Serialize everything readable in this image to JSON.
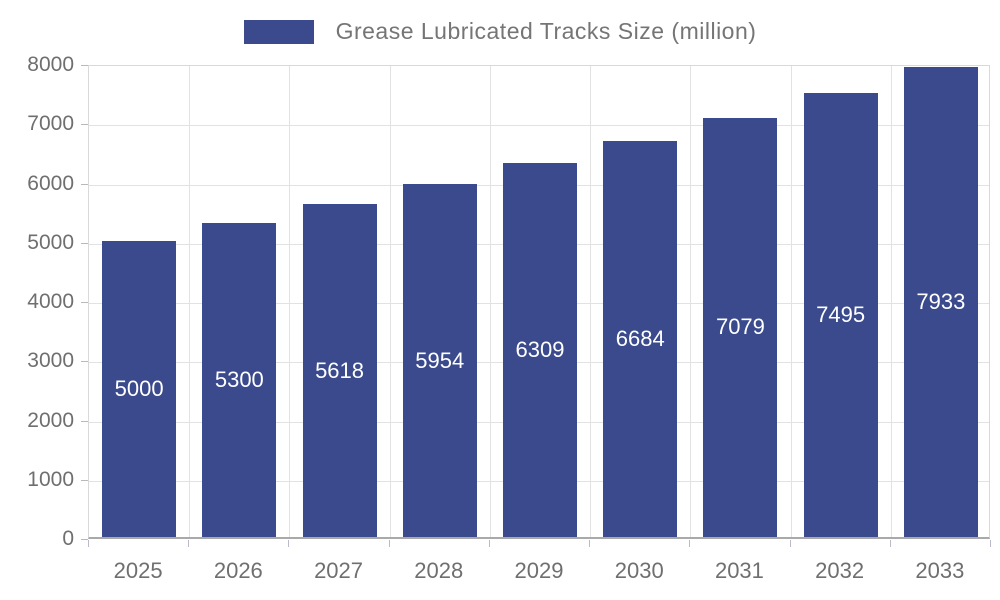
{
  "chart_data": {
    "type": "bar",
    "title": "",
    "legend": "Grease Lubricated Tracks Size (million)",
    "legend_position": "top-center",
    "categories": [
      "2025",
      "2026",
      "2027",
      "2028",
      "2029",
      "2030",
      "2031",
      "2032",
      "2033"
    ],
    "series": [
      {
        "name": "Grease Lubricated Tracks Size (million)",
        "values": [
          5000,
          5300,
          5618,
          5954,
          6309,
          6684,
          7079,
          7495,
          7933
        ]
      }
    ],
    "value_labels": [
      "5000",
      "5300",
      "5618",
      "5954",
      "6309",
      "6684",
      "7079",
      "7495",
      "7933"
    ],
    "xlabel": "",
    "ylabel": "",
    "ylim": [
      0,
      8000
    ],
    "yticks": [
      0,
      1000,
      2000,
      3000,
      4000,
      5000,
      6000,
      7000,
      8000
    ],
    "grid": true,
    "colors": {
      "bar": "#3A4A8C",
      "bar_value_label": "#ffffff",
      "axis_label_text": "#6f6f6f",
      "legend_text": "#757575",
      "gridline": "#e2e2e2",
      "axis_line": "#a9a9a9",
      "background": "#ffffff"
    }
  }
}
